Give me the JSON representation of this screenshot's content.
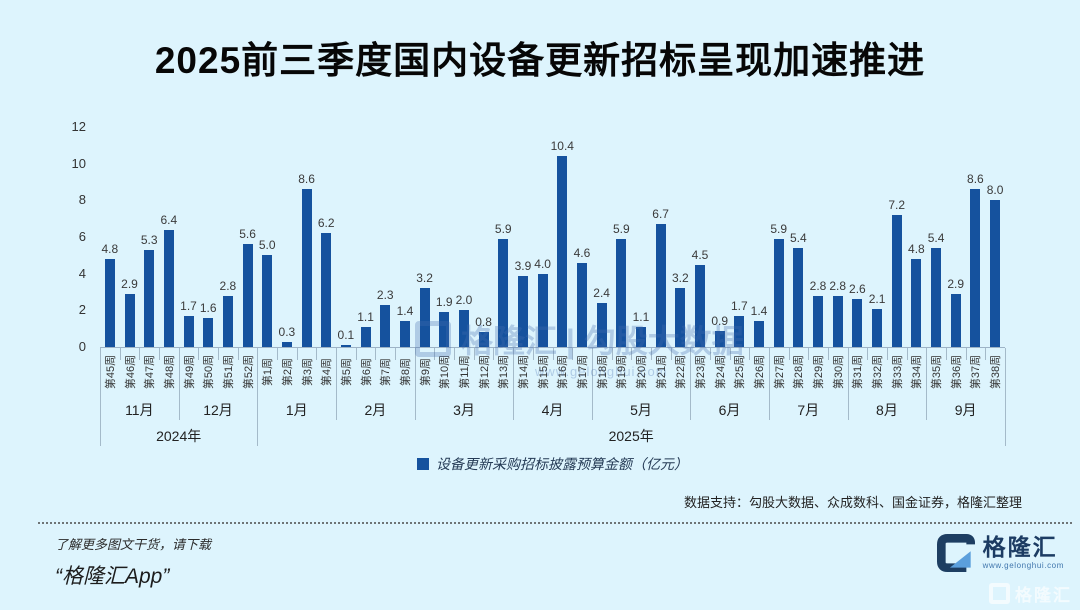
{
  "title": "2025前三季度国内设备更新招标呈现加速推进",
  "chart_data": {
    "type": "bar",
    "title": "2025前三季度国内设备更新招标呈现加速推进",
    "legend": "设备更新采购招标披露预算金额（亿元）",
    "legend_position": "bottom-center",
    "grid": false,
    "ylim": [
      0,
      12
    ],
    "yticks": [
      0,
      2,
      4,
      6,
      8,
      10,
      12
    ],
    "bar_color": "#15529e",
    "categories": [
      "第45周",
      "第46周",
      "第47周",
      "第48周",
      "第49周",
      "第50周",
      "第51周",
      "第52周",
      "第1周",
      "第2周",
      "第3周",
      "第4周",
      "第5周",
      "第6周",
      "第7周",
      "第8周",
      "第9周",
      "第10周",
      "第11周",
      "第12周",
      "第13周",
      "第14周",
      "第15周",
      "第16周",
      "第17周",
      "第18周",
      "第19周",
      "第20周",
      "第21周",
      "第22周",
      "第23周",
      "第24周",
      "第25周",
      "第26周",
      "第27周",
      "第28周",
      "第29周",
      "第30周",
      "第31周",
      "第32周",
      "第33周",
      "第34周",
      "第35周",
      "第36周",
      "第37周",
      "第38周"
    ],
    "values": [
      4.8,
      2.9,
      5.3,
      6.4,
      1.7,
      1.6,
      2.8,
      5.6,
      5.0,
      0.3,
      8.6,
      6.2,
      0.1,
      1.1,
      2.3,
      1.4,
      3.2,
      1.9,
      2.0,
      0.8,
      5.9,
      3.9,
      4.0,
      10.4,
      4.6,
      2.4,
      5.9,
      1.1,
      6.7,
      3.2,
      4.5,
      0.9,
      1.7,
      1.4,
      5.9,
      5.4,
      2.8,
      2.8,
      2.6,
      2.1,
      7.2,
      4.8,
      5.4,
      2.9,
      8.6,
      8.0
    ],
    "month_groups": [
      {
        "label": "11月",
        "count": 4
      },
      {
        "label": "12月",
        "count": 4
      },
      {
        "label": "1月",
        "count": 4
      },
      {
        "label": "2月",
        "count": 4
      },
      {
        "label": "3月",
        "count": 5
      },
      {
        "label": "4月",
        "count": 4
      },
      {
        "label": "5月",
        "count": 5
      },
      {
        "label": "6月",
        "count": 4
      },
      {
        "label": "7月",
        "count": 4
      },
      {
        "label": "8月",
        "count": 4
      },
      {
        "label": "9月",
        "count": 4
      }
    ],
    "year_groups": [
      {
        "label": "2024年",
        "count": 8
      },
      {
        "label": "2025年",
        "count": 38
      }
    ]
  },
  "source": "数据支持：勾股大数据、众成数科、国金证券，格隆汇整理",
  "watermark": {
    "center_text": "格隆汇 | 勾股大数据",
    "center_url": "www.gelonghui.com",
    "corner_text": "格隆汇"
  },
  "footer": {
    "line1": "了解更多图文干货，请下载",
    "line2": "“格隆汇App”",
    "logo_name": "格隆汇",
    "logo_url": "www.gelonghui.com"
  }
}
